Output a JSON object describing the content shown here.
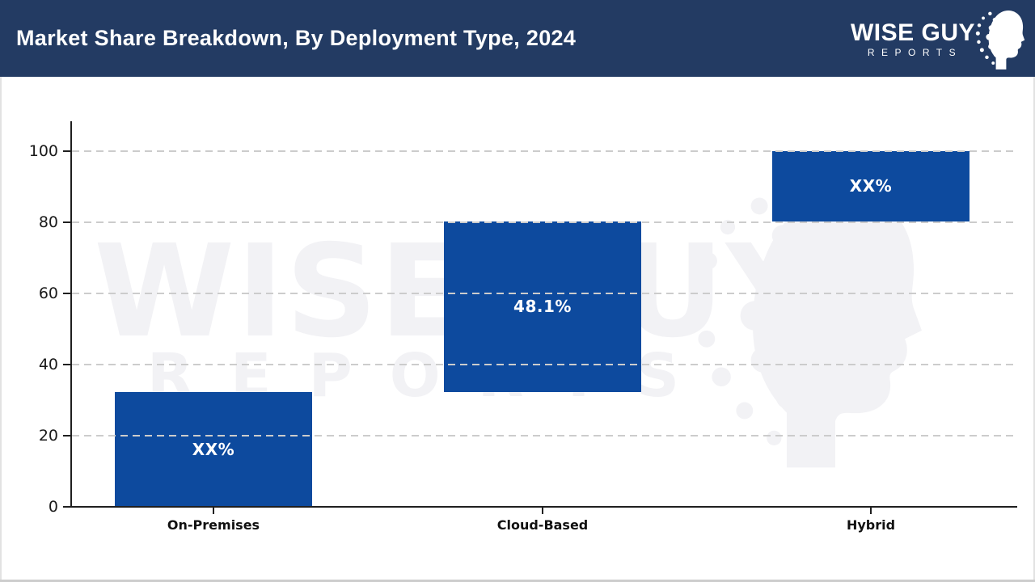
{
  "header": {
    "title": "Market Share Breakdown, By Deployment Type, 2024",
    "logo": {
      "name": "WISE GUY",
      "subtitle": "REPORTS"
    }
  },
  "watermark": {
    "name": "WISE GUY",
    "subtitle": "REPORTS"
  },
  "colors": {
    "header_bg": "#233b63",
    "bar": "#0d4a9e",
    "bar_label": "#ffffff",
    "gridline": "#cccccc",
    "axis": "#1f1f1f",
    "watermark": "#f2f2f5"
  },
  "chart_data": {
    "type": "bar",
    "subtype": "waterfall",
    "title": "Market Share Breakdown, By Deployment Type, 2024",
    "categories": [
      "On-Premises",
      "Cloud-Based",
      "Hybrid"
    ],
    "segments": [
      {
        "category": "On-Premises",
        "start": 0,
        "end": 32.2,
        "label": "XX%"
      },
      {
        "category": "Cloud-Based",
        "start": 32.2,
        "end": 80.3,
        "label": "48.1%"
      },
      {
        "category": "Hybrid",
        "start": 80.3,
        "end": 100,
        "label": "XX%"
      }
    ],
    "yticks": [
      0,
      20,
      40,
      60,
      80,
      100
    ],
    "ylim": [
      0,
      108
    ],
    "xlabel": "",
    "ylabel": "",
    "grid": "horizontal-dashed",
    "legend": "none",
    "bar_color": "#0d4a9e",
    "bar_label_color": "#ffffff"
  }
}
